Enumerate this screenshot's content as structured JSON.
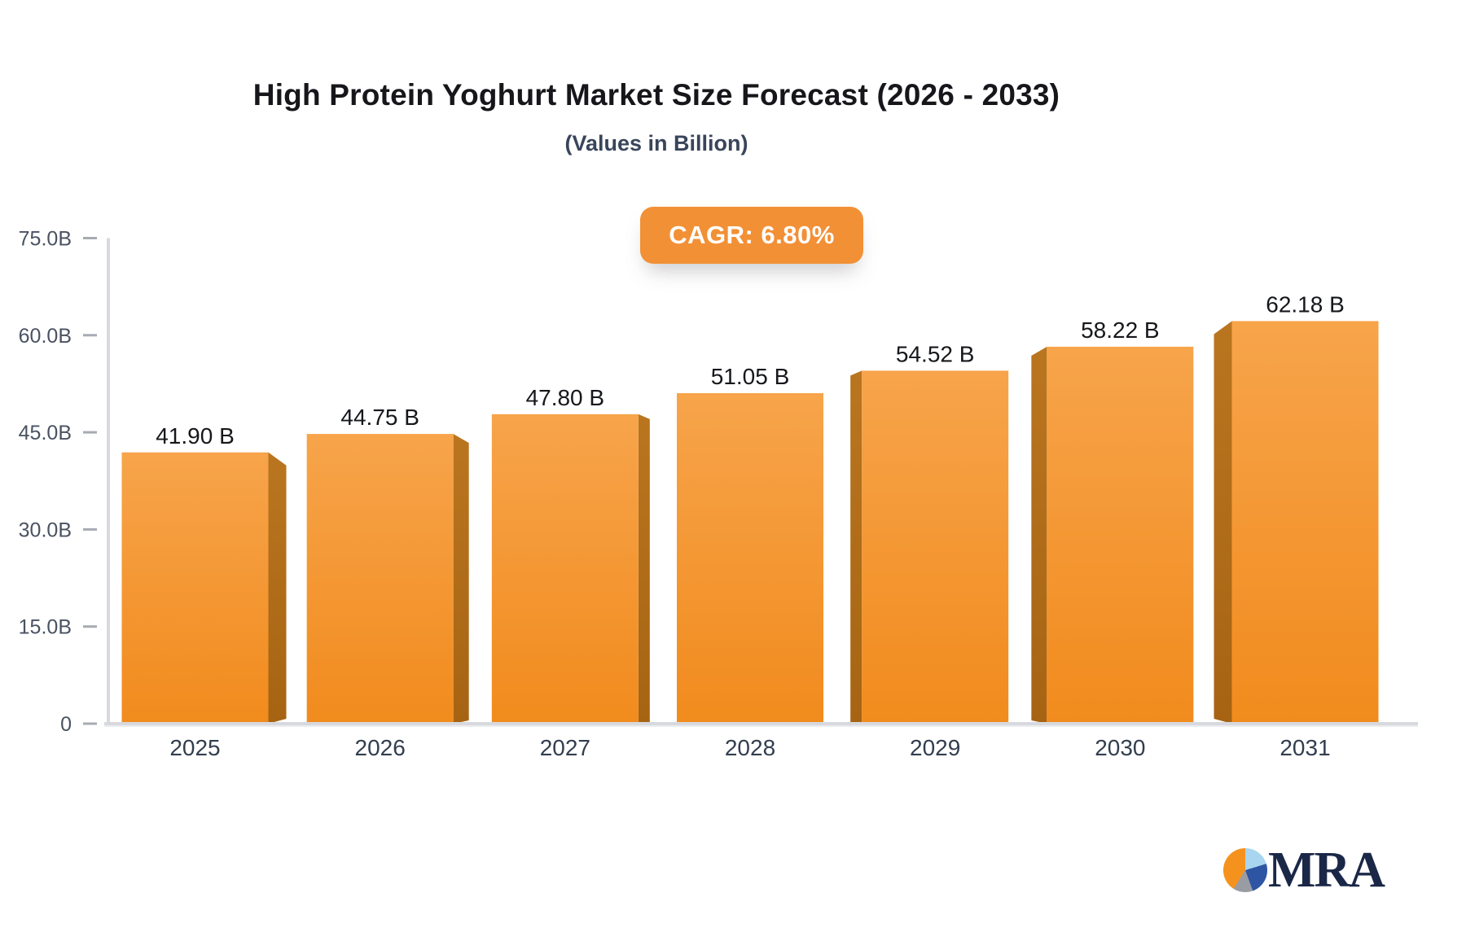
{
  "header": {
    "title": "High Protein Yoghurt Market Size Forecast (2026 - 2033)",
    "subtitle": "(Values in Billion)",
    "cagr_label": "CAGR: 6.80%"
  },
  "logo": {
    "text": "MRA",
    "icon": "pie-chart-icon"
  },
  "chart_data": {
    "type": "bar",
    "title": "High Protein Yoghurt Market Size Forecast (2026 - 2033)",
    "subtitle": "(Values in Billion)",
    "cagr": "CAGR: 6.80%",
    "categories": [
      "2025",
      "2026",
      "2027",
      "2028",
      "2029",
      "2030",
      "2031"
    ],
    "values": [
      41.9,
      44.75,
      47.8,
      51.05,
      54.52,
      58.22,
      62.18
    ],
    "value_labels": [
      "41.90 B",
      "44.75 B",
      "47.80 B",
      "51.05 B",
      "54.52 B",
      "58.22 B",
      "62.18 B"
    ],
    "xlabel": "",
    "ylabel": "",
    "ylim": [
      0,
      75
    ],
    "yticks": [
      {
        "value": 0,
        "label": "0"
      },
      {
        "value": 15,
        "label": "15.0B"
      },
      {
        "value": 30,
        "label": "30.0B"
      },
      {
        "value": 45,
        "label": "45.0B"
      },
      {
        "value": 60,
        "label": "60.0B"
      },
      {
        "value": 75,
        "label": "75.0B"
      }
    ],
    "grid": false,
    "legend": false,
    "bar_style": "3d-perspective",
    "colors": {
      "bar_top": "#F7A44B",
      "bar_bottom": "#F18B1D",
      "bar_side_top": "#BA751F",
      "bar_side_bottom": "#A66413",
      "axis": "#D7D9DE",
      "axis_shadow": "#ECEDEF",
      "tick": "#A7ABB3",
      "tick_label": "#4A5262",
      "category_label": "#323E4F",
      "value_label": "#15171B",
      "badge_bg": "#F29036",
      "badge_text": "#FFFFFF"
    }
  }
}
